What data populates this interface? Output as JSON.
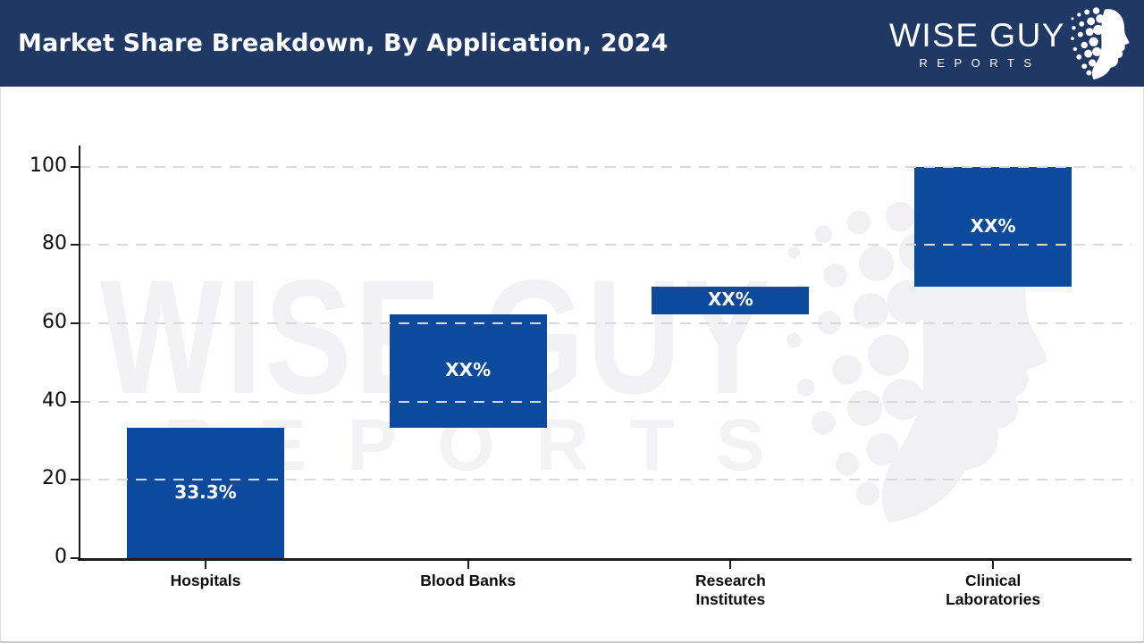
{
  "header": {
    "title": "Market Share Breakdown, By Application, 2024",
    "logo": {
      "line1": "WISE GUY",
      "line2": "REPORTS"
    }
  },
  "watermark": {
    "line1": "WISE GUY",
    "line2": "REPORTS"
  },
  "chart_data": {
    "type": "bar",
    "subtype": "waterfall-floating-bars",
    "title": "Market Share Breakdown, By Application, 2024",
    "categories": [
      "Hospitals",
      "Blood Banks",
      "Research Institutes",
      "Clinical Laboratories"
    ],
    "segments": [
      {
        "category": "Hospitals",
        "category_lines": [
          "Hospitals"
        ],
        "start": 0,
        "end": 33.3,
        "label": "33.3%"
      },
      {
        "category": "Blood Banks",
        "category_lines": [
          "Blood Banks"
        ],
        "start": 33.3,
        "end": 62.3,
        "label": "XX%"
      },
      {
        "category": "Research Institutes",
        "category_lines": [
          "Research",
          "Institutes"
        ],
        "start": 62.3,
        "end": 69.4,
        "label": "XX%"
      },
      {
        "category": "Clinical Laboratories",
        "category_lines": [
          "Clinical",
          "Laboratories"
        ],
        "start": 69.4,
        "end": 100,
        "label": "XX%"
      }
    ],
    "yticks": [
      0,
      20,
      40,
      60,
      80,
      100
    ],
    "ylim": [
      0,
      105
    ],
    "xlabel": "",
    "ylabel": "",
    "grid": "horizontal-dashed",
    "legend": "none",
    "bar_color": "#0c4a9d",
    "bar_label_color": "#ffffff",
    "header_color": "#1f3864",
    "gridline_color": "#d9d9d9",
    "axis_color": "#1c1c1c"
  }
}
